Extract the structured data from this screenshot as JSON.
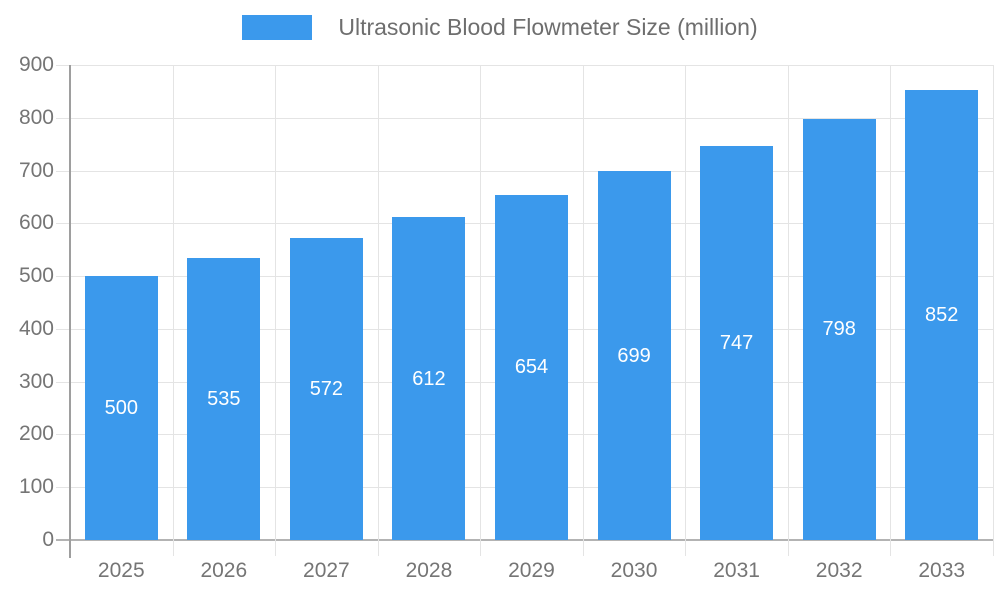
{
  "chart_data": {
    "type": "bar",
    "title": "",
    "legend_label": "Ultrasonic Blood Flowmeter Size (million)",
    "legend_position": "top",
    "categories": [
      "2025",
      "2026",
      "2027",
      "2028",
      "2029",
      "2030",
      "2031",
      "2032",
      "2033"
    ],
    "series": [
      {
        "name": "Ultrasonic Blood Flowmeter Size (million)",
        "values": [
          500,
          535,
          572,
          612,
          654,
          699,
          747,
          798,
          852
        ]
      }
    ],
    "value_labels": [
      "500",
      "535",
      "572",
      "612",
      "654",
      "699",
      "747",
      "798",
      "852"
    ],
    "xlabel": "",
    "ylabel": "",
    "ylim": [
      0,
      900
    ],
    "ytick_step": 100,
    "yticks": [
      "0",
      "100",
      "200",
      "300",
      "400",
      "500",
      "600",
      "700",
      "800",
      "900"
    ],
    "grid": true,
    "colors": {
      "bar": "#3B99EC",
      "bar_value_text": "#FFFFFF",
      "axis_text": "#757575",
      "legend_text": "#6E6E6E",
      "gridline": "#E4E4E4",
      "baseline": "#B3B3B3",
      "axis_line": "#9E9E9E",
      "background": "#FFFFFF"
    }
  }
}
